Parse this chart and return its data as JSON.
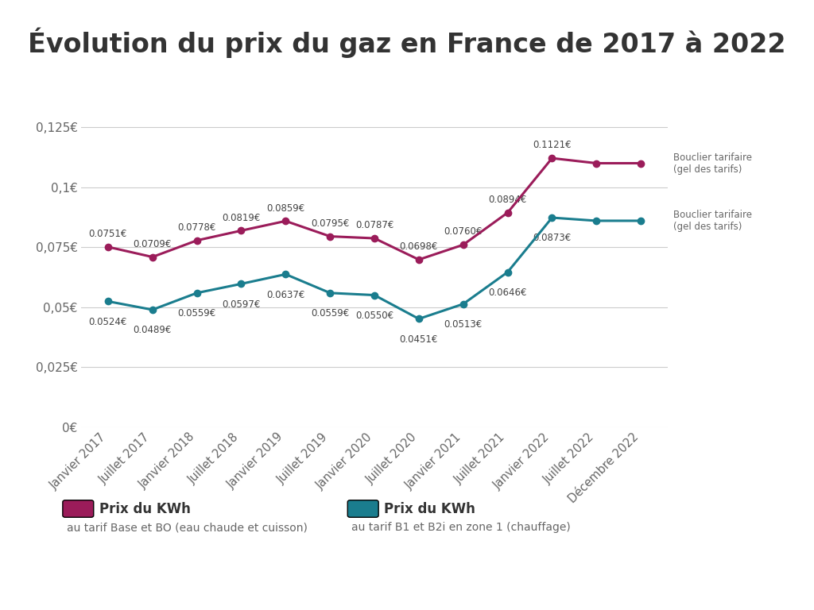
{
  "title": "Évolution du prix du gaz en France de 2017 à 2022",
  "title_fontsize": 24,
  "background_color": "#ffffff",
  "x_labels": [
    "Janvier 2017",
    "Juillet 2017",
    "Janvier 2018",
    "Juillet 2018",
    "Janvier 2019",
    "Juillet 2019",
    "Janvier 2020",
    "Juillet 2020",
    "Janvier 2021",
    "Juillet 2021",
    "Janvier 2022",
    "Juillet 2022",
    "Décembre 2022"
  ],
  "series1_values": [
    0.0751,
    0.0709,
    0.0778,
    0.0819,
    0.0859,
    0.0795,
    0.0787,
    0.0698,
    0.076,
    0.0894,
    0.1121,
    0.11,
    0.11
  ],
  "series2_values": [
    0.0524,
    0.0489,
    0.0559,
    0.0597,
    0.0637,
    0.0559,
    0.055,
    0.0451,
    0.0513,
    0.0646,
    0.0873,
    0.086,
    0.086
  ],
  "series1_labels": [
    "0.0751€",
    "0.0709€",
    "0.0778€",
    "0.0819€",
    "0.0859€",
    "0.0795€",
    "0.0787€",
    "0.0698€",
    "0.0760€",
    "0.0894€",
    "0.1121€",
    null,
    null
  ],
  "series2_labels": [
    "0.0524€",
    "0.0489€",
    "0.0559€",
    "0.0597€",
    "0.0637€",
    "0.0559€",
    "0.0550€",
    "0.0451€",
    "0.0513€",
    "0.0646€",
    "0.0873€",
    null,
    null
  ],
  "series1_color": "#9b1c5a",
  "series2_color": "#1a7d8e",
  "series1_linewidth": 2.2,
  "series2_linewidth": 2.2,
  "marker_size": 6,
  "ylim": [
    0,
    0.145
  ],
  "yticks": [
    0,
    0.025,
    0.05,
    0.075,
    0.1,
    0.125
  ],
  "ytick_labels": [
    "0€",
    "0,025€",
    "0,05€",
    "0,075€",
    "0,1€",
    "0,125€"
  ],
  "grid_color": "#cccccc",
  "annotation_bouclier1": "Bouclier tarifaire\n(gel des tarifs)",
  "annotation_bouclier2": "Bouclier tarifaire\n(gel des tarifs)",
  "legend1_label1": "Prix du KWh",
  "legend1_label2": "au tarif Base et BO (eau chaude et cuisson)",
  "legend2_label1": "Prix du KWh",
  "legend2_label2": "au tarif B1 et B2i en zone 1 (chauffage)",
  "label_fontsize": 8.5,
  "tick_fontsize": 11
}
